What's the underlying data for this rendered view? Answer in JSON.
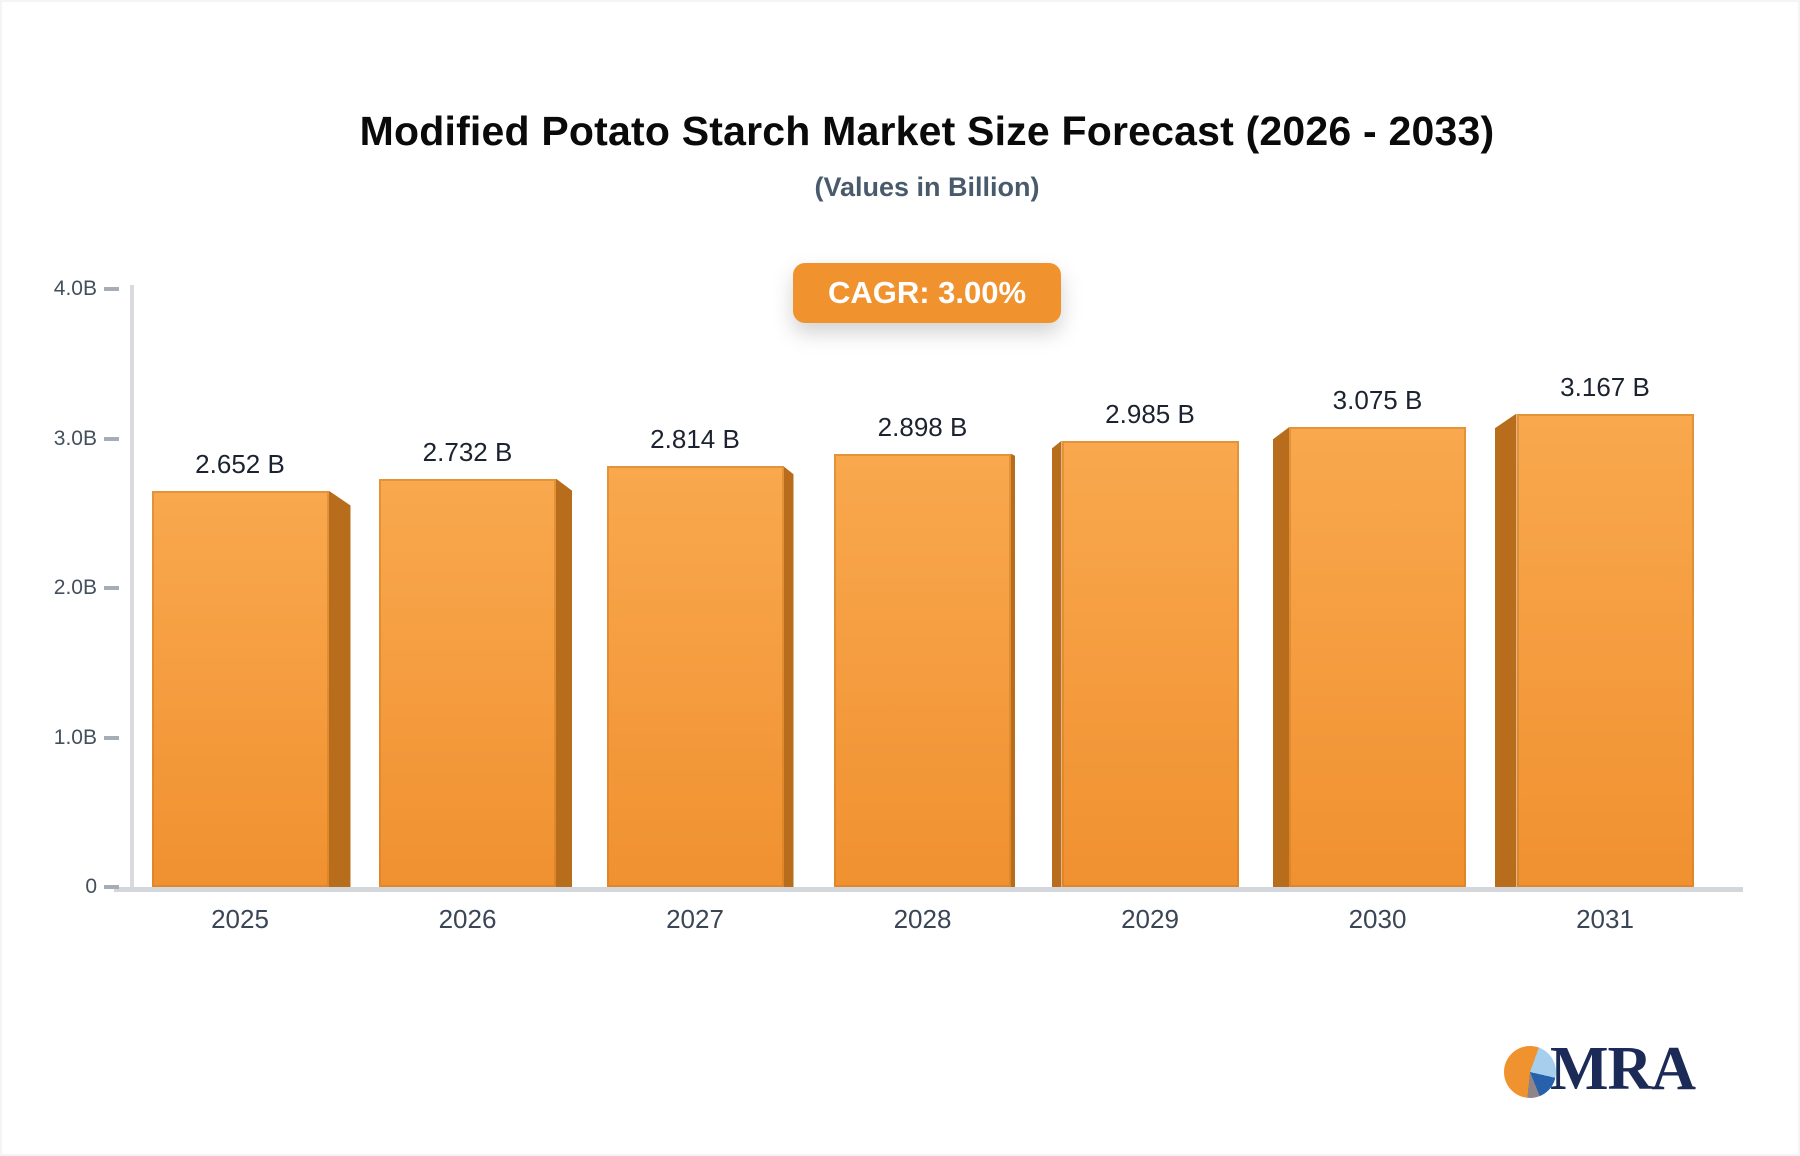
{
  "header": {
    "title": "Modified Potato Starch Market Size Forecast (2026 - 2033)",
    "subtitle": "(Values in Billion)"
  },
  "badge": {
    "label": "CAGR: 3.00%",
    "color": "#f0932f"
  },
  "chart_data": {
    "type": "bar",
    "title": "Modified Potato Starch Market Size Forecast (2026 - 2033)",
    "subtitle": "(Values in Billion)",
    "cagr_percent": "3.00%",
    "categories": [
      "2025",
      "2026",
      "2027",
      "2028",
      "2029",
      "2030",
      "2031"
    ],
    "values": [
      2.652,
      2.732,
      2.814,
      2.898,
      2.985,
      3.075,
      3.167
    ],
    "value_labels": [
      "2.652 B",
      "2.732 B",
      "2.814 B",
      "2.898 B",
      "2.985 B",
      "3.075 B",
      "3.167 B"
    ],
    "unit": "Billion",
    "ylim": [
      0,
      4
    ],
    "ytick_values": [
      4,
      3,
      2,
      1,
      0
    ],
    "ytick_labels": [
      "4.0B",
      "3.0B",
      "2.0B",
      "1.0B",
      "0"
    ],
    "grid": false,
    "legend": false,
    "colors": {
      "bar_face_top": "#f9a84e",
      "bar_face_bottom": "#f09130",
      "bar_side": "#b86d1d",
      "axis_line": "#d9dade",
      "baseline": "#d3d6da",
      "tick_dash": "#a7adb5"
    }
  },
  "logo": {
    "text": "MRA",
    "pie_colors": {
      "orange": "#f0922d",
      "light_blue": "#a6cfee",
      "blue": "#2761ab",
      "gray": "#8f8589"
    }
  }
}
